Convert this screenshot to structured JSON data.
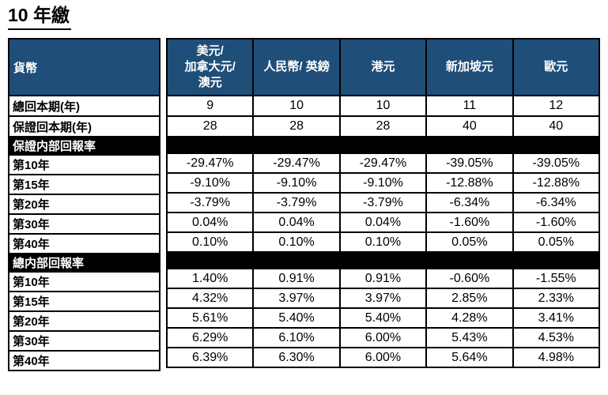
{
  "page_title": "10 年繳",
  "colors": {
    "header_bg": "#1F4E79",
    "header_text": "#FFFFFF",
    "section_bg": "#000000",
    "section_text": "#FFFFFF",
    "border": "#000000",
    "cell_text": "#000000"
  },
  "table": {
    "corner_header": "貨幣",
    "column_headers": [
      "美元/\n加拿大元/\n澳元",
      "人民幣/ 英鎊",
      "港元",
      "新加坡元",
      "歐元"
    ],
    "rows": [
      {
        "type": "data",
        "label": "總回本期(年)",
        "values": [
          "9",
          "10",
          "10",
          "11",
          "12"
        ]
      },
      {
        "type": "data",
        "label": "保證回本期(年)",
        "values": [
          "28",
          "28",
          "28",
          "40",
          "40"
        ]
      },
      {
        "type": "section",
        "label": "保證内部回報率"
      },
      {
        "type": "data",
        "label": "第10年",
        "values": [
          "-29.47%",
          "-29.47%",
          "-29.47%",
          "-39.05%",
          "-39.05%"
        ]
      },
      {
        "type": "data",
        "label": "第15年",
        "values": [
          "-9.10%",
          "-9.10%",
          "-9.10%",
          "-12.88%",
          "-12.88%"
        ]
      },
      {
        "type": "data",
        "label": "第20年",
        "values": [
          "-3.79%",
          "-3.79%",
          "-3.79%",
          "-6.34%",
          "-6.34%"
        ]
      },
      {
        "type": "data",
        "label": "第30年",
        "values": [
          "0.04%",
          "0.04%",
          "0.04%",
          "-1.60%",
          "-1.60%"
        ]
      },
      {
        "type": "data",
        "label": "第40年",
        "values": [
          "0.10%",
          "0.10%",
          "0.10%",
          "0.05%",
          "0.05%"
        ]
      },
      {
        "type": "section",
        "label": "總内部回報率"
      },
      {
        "type": "data",
        "label": "第10年",
        "values": [
          "1.40%",
          "0.91%",
          "0.91%",
          "-0.60%",
          "-1.55%"
        ]
      },
      {
        "type": "data",
        "label": "第15年",
        "values": [
          "4.32%",
          "3.97%",
          "3.97%",
          "2.85%",
          "2.33%"
        ]
      },
      {
        "type": "data",
        "label": "第20年",
        "values": [
          "5.61%",
          "5.40%",
          "5.40%",
          "4.28%",
          "3.41%"
        ]
      },
      {
        "type": "data",
        "label": "第30年",
        "values": [
          "6.29%",
          "6.10%",
          "6.00%",
          "5.43%",
          "4.53%"
        ]
      },
      {
        "type": "data",
        "label": "第40年",
        "values": [
          "6.39%",
          "6.30%",
          "6.00%",
          "5.64%",
          "4.98%"
        ]
      }
    ]
  }
}
